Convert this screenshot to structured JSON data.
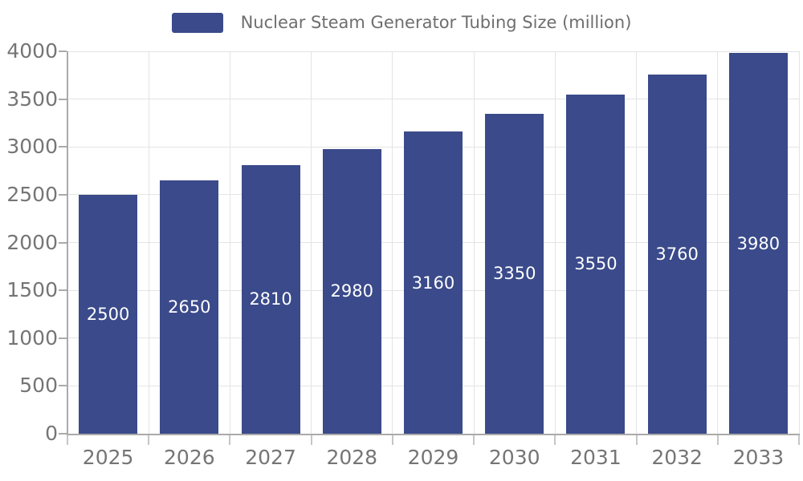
{
  "legend": {
    "label": "Nuclear Steam Generator Tubing Size (million)"
  },
  "colors": {
    "bar": "#3A4A8A",
    "axis_line": "#AAAAAA",
    "x_tick": "#C6C6C6",
    "gridline": "#E4E4E4",
    "axis_label": "#757575",
    "legend_text": "#6E6E6E",
    "value_label": "#FFFFFF",
    "background": "#FFFFFF"
  },
  "chart_data": {
    "type": "bar",
    "title": "Nuclear Steam Generator Tubing Size (million)",
    "legend_entries": [
      "Nuclear Steam Generator Tubing Size (million)"
    ],
    "legend_position": "top-center",
    "categories": [
      "2025",
      "2026",
      "2027",
      "2028",
      "2029",
      "2030",
      "2031",
      "2032",
      "2033"
    ],
    "series": [
      {
        "name": "Nuclear Steam Generator Tubing Size (million)",
        "values": [
          2500,
          2650,
          2810,
          2980,
          3160,
          3350,
          3550,
          3760,
          3980
        ]
      }
    ],
    "xlabel": "",
    "ylabel": "",
    "ylim": [
      0,
      4000
    ],
    "yticks": [
      0,
      500,
      1000,
      1500,
      2000,
      2500,
      3000,
      3500,
      4000
    ],
    "grid": true,
    "value_labels": {
      "position": "center",
      "color": "white"
    }
  }
}
